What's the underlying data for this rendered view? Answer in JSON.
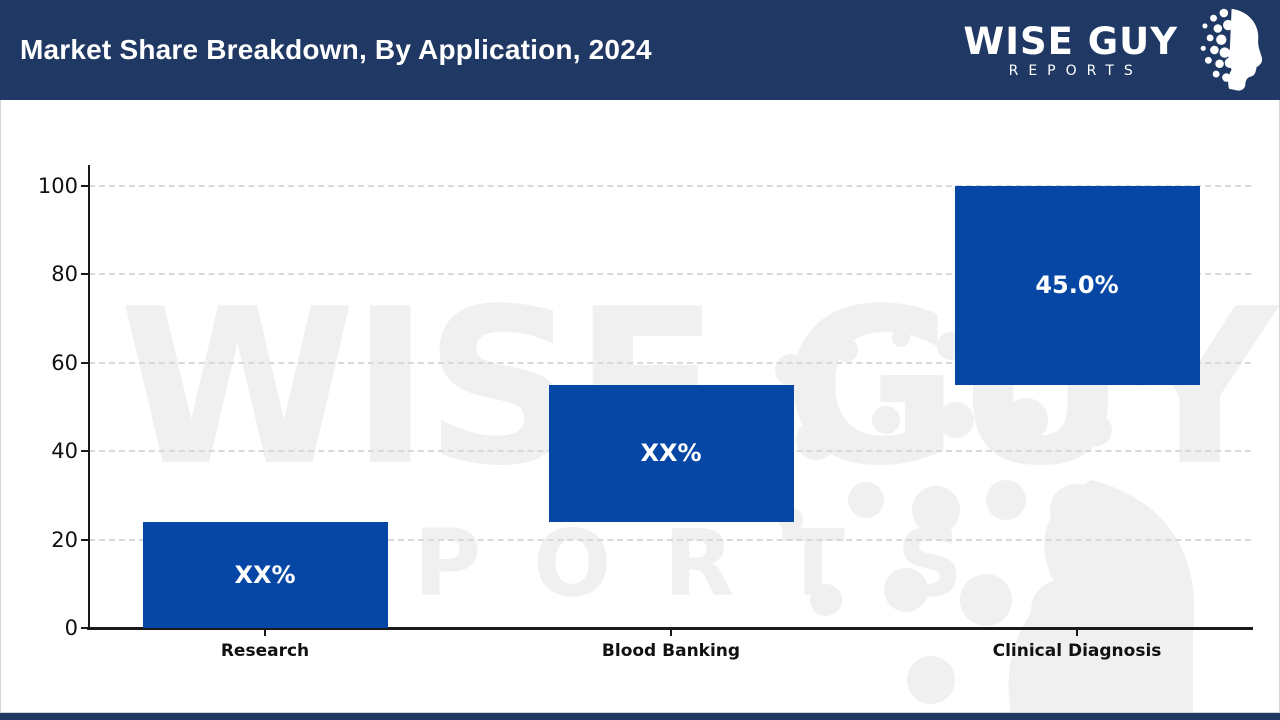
{
  "header": {
    "title": "Market Share Breakdown, By Application, 2024",
    "logo": {
      "line1": "WISE GUY",
      "line2": "REPORTS"
    }
  },
  "watermark": {
    "line1": "WISE GUY",
    "line2": "REPORTS"
  },
  "theme": {
    "header_bg": "#1f3864",
    "bar_color": "#0647a6",
    "grid_color": "#d9d9d9",
    "axis_color": "#1a1a1a",
    "watermark_color": "#f0f0f1"
  },
  "chart_data": {
    "type": "bar",
    "subtype": "floating-waterfall",
    "title": "Market Share Breakdown, By Application, 2024",
    "categories": [
      "Research",
      "Blood Banking",
      "Clinical Diagnosis"
    ],
    "segments": [
      {
        "category": "Research",
        "start": 0,
        "end": 24,
        "label": "XX%",
        "estimated_value_pct": 24
      },
      {
        "category": "Blood Banking",
        "start": 24,
        "end": 55,
        "label": "XX%",
        "estimated_value_pct": 31
      },
      {
        "category": "Clinical Diagnosis",
        "start": 55,
        "end": 100,
        "label": "45.0%",
        "estimated_value_pct": 45
      }
    ],
    "yticks": [
      0,
      20,
      40,
      60,
      80,
      100
    ],
    "ylim": [
      0,
      100
    ],
    "xlabel": "",
    "ylabel": "",
    "grid": "horizontal-dashed",
    "legend": "none",
    "bar_color": "#0647a6"
  }
}
